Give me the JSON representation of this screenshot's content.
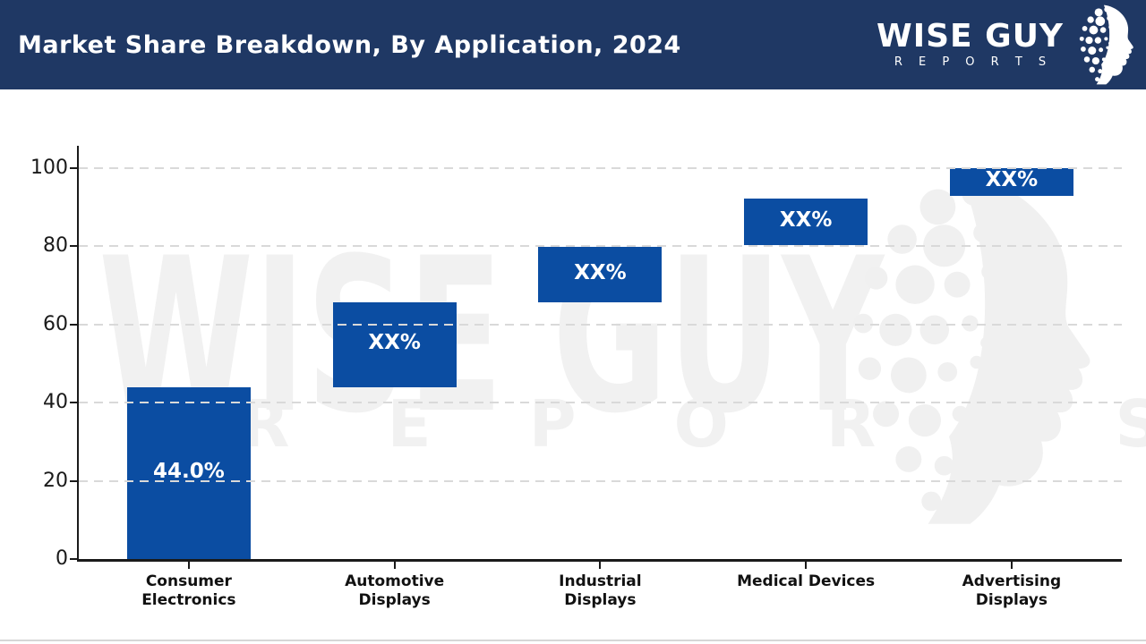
{
  "header": {
    "title": "Market Share Breakdown, By Application, 2024",
    "brand": {
      "name": "WISE GUY",
      "subname": "R E P O R T S"
    }
  },
  "watermark": {
    "line1": "WISE GUY",
    "line2": "R E P O R T S"
  },
  "colors": {
    "header_bg": "#1f3864",
    "bar": "#0b4da2",
    "bar_label": "#ffffff",
    "grid": "#d9d9d9",
    "axis": "#1a1a1a",
    "tick_label": "#1a1a1a",
    "watermark": "#f1f1f1"
  },
  "chart_data": {
    "type": "bar",
    "subtype": "waterfall",
    "title": "Market Share Breakdown, By Application, 2024",
    "xlabel": "",
    "ylabel": "",
    "ylim": [
      0,
      105
    ],
    "y_ticks": [
      0,
      20,
      40,
      60,
      80,
      100
    ],
    "grid": "horizontal dashed gridlines, drawn over bars",
    "legend": "none",
    "categories": [
      "Consumer Electronics",
      "Automotive Displays",
      "Industrial Displays",
      "Medical Devices",
      "Advertising Displays"
    ],
    "segments": [
      {
        "category": "Consumer Electronics",
        "lines": [
          "Consumer",
          "Electronics"
        ],
        "start": 0,
        "end": 44,
        "label": "44.0%"
      },
      {
        "category": "Automotive Displays",
        "lines": [
          "Automotive",
          "Displays"
        ],
        "start": 44,
        "end": 65.5,
        "label": "XX%"
      },
      {
        "category": "Industrial Displays",
        "lines": [
          "Industrial",
          "Displays"
        ],
        "start": 65.5,
        "end": 79.8,
        "label": "XX%"
      },
      {
        "category": "Medical Devices",
        "lines": [
          "Medical Devices"
        ],
        "start": 80.3,
        "end": 92.2,
        "label": "XX%"
      },
      {
        "category": "Advertising Displays",
        "lines": [
          "Advertising",
          "Displays"
        ],
        "start": 92.7,
        "end": 100,
        "label": "XX%"
      }
    ]
  }
}
